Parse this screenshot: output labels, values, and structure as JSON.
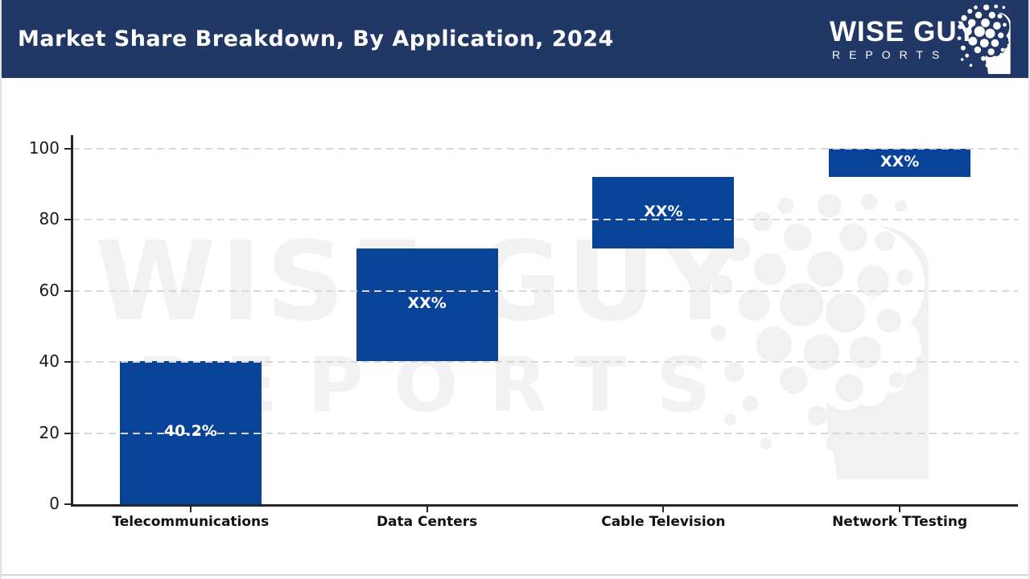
{
  "header": {
    "title": "Market Share Breakdown, By Application, 2024",
    "logo": {
      "line1": "WISE GUY",
      "line2": "REPORTS"
    }
  },
  "watermark": {
    "line1": "WISE GUY",
    "line2": "REPORTS"
  },
  "colors": {
    "header_bg": "#213867",
    "bar": "#094397",
    "bar_label": "#ffffff",
    "gridline": "#d9d9d9",
    "axis": "#262626",
    "watermark": "#f1f1f1"
  },
  "chart_data": {
    "type": "bar",
    "subtype": "waterfall",
    "title": "Market Share Breakdown, By Application, 2024",
    "categories": [
      "Telecommunications",
      "Data Centers",
      "Cable Television",
      "Network TTesting"
    ],
    "segments": [
      {
        "category": "Telecommunications",
        "start": 0,
        "end": 40.2,
        "label": "40.2%"
      },
      {
        "category": "Data Centers",
        "start": 40.2,
        "end": 72,
        "label": "XX%"
      },
      {
        "category": "Cable Television",
        "start": 72,
        "end": 92,
        "label": "XX%"
      },
      {
        "category": "Network TTesting",
        "start": 92,
        "end": 100,
        "label": "XX%"
      }
    ],
    "yticks": [
      0,
      20,
      40,
      60,
      80,
      100
    ],
    "ylim": [
      0,
      105
    ],
    "xlabel": "",
    "ylabel": "",
    "grid": "horizontal-dashed",
    "legend": "none",
    "bar_color": "#094397",
    "value_label_color": "#ffffff"
  }
}
